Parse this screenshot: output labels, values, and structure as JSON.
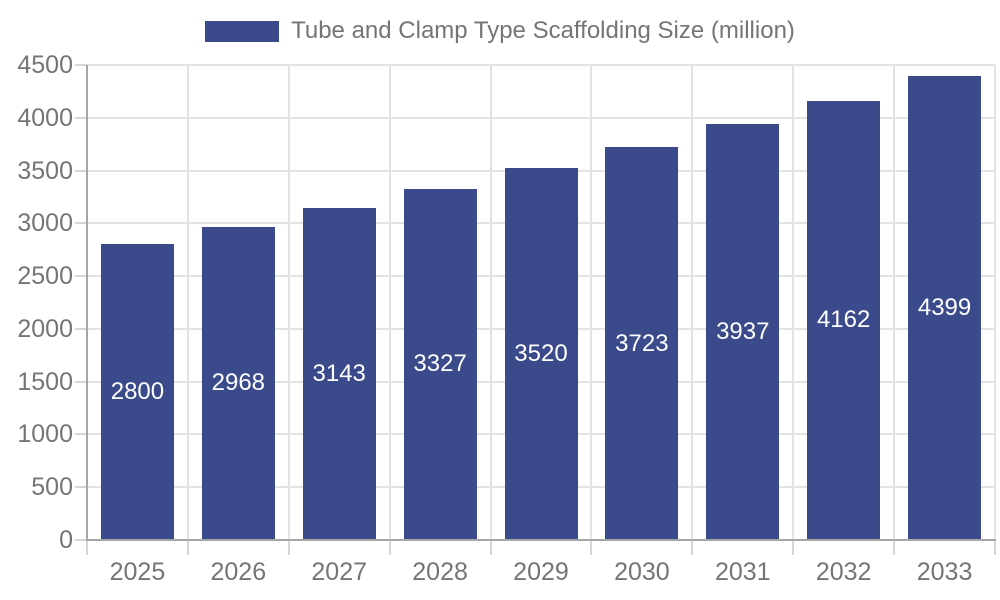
{
  "chart_data": {
    "type": "bar",
    "title": "Tube and Clamp Type Scaffolding Size (million)",
    "legend": {
      "label": "Tube and Clamp Type Scaffolding Size (million)",
      "position": "top"
    },
    "categories": [
      "2025",
      "2026",
      "2027",
      "2028",
      "2029",
      "2030",
      "2031",
      "2032",
      "2033"
    ],
    "series": [
      {
        "name": "Tube and Clamp Type Scaffolding Size (million)",
        "values": [
          2800,
          2968,
          3143,
          3327,
          3520,
          3723,
          3937,
          4162,
          4399
        ]
      }
    ],
    "value_labels_shown": true,
    "xlabel": "",
    "ylabel": "",
    "ylim": [
      0,
      4500
    ],
    "y_ticks": [
      0,
      500,
      1000,
      1500,
      2000,
      2500,
      3000,
      3500,
      4000,
      4500
    ],
    "y_tick_labels": [
      "0",
      "500",
      "1000",
      "1500",
      "2000",
      "2500",
      "3000",
      "3500",
      "4000",
      "4500"
    ],
    "grid": true,
    "colors": {
      "bar": "#3A4A8B",
      "value_label": "#ffffff",
      "axis_text": "#757575",
      "legend_text": "#757575",
      "gridline": "#e3e3e3",
      "tick": "#d6d6d6",
      "axis_line": "#a6a6a6",
      "background": "#ffffff"
    }
  }
}
